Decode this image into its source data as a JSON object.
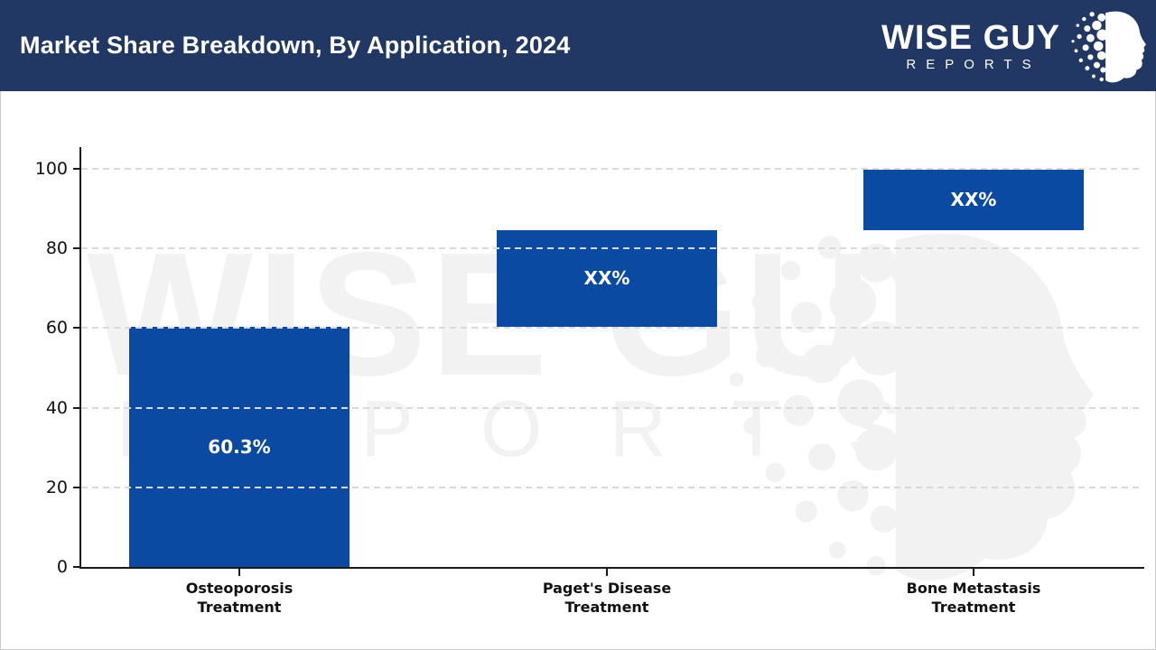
{
  "header": {
    "title": "Market Share Breakdown, By Application, 2024",
    "brand_line1": "WISE GUY",
    "brand_line2": "REPORTS"
  },
  "watermark": {
    "line1": "WISE GUY",
    "line2": "REPORTS"
  },
  "chart_data": {
    "type": "bar",
    "subtype": "floating-segment-bars (waterfall-style share breakdown, segments stack left to right)",
    "title": "Market Share Breakdown, By Application, 2024",
    "categories": [
      "Osteoporosis Treatment",
      "Paget's Disease Treatment",
      "Bone Metastasis Treatment"
    ],
    "bars": [
      {
        "category_line1": "Osteoporosis",
        "category_line2": "Treatment",
        "base": 0,
        "top": 60.3,
        "label": "60.3%"
      },
      {
        "category_line1": "Paget's Disease",
        "category_line2": "Treatment",
        "base": 60.3,
        "top": 84.6,
        "label": "XX%"
      },
      {
        "category_line1": "Bone Metastasis",
        "category_line2": "Treatment",
        "base": 84.6,
        "top": 99.8,
        "label": "XX%"
      }
    ],
    "yticks": [
      "0",
      "20",
      "40",
      "60",
      "80",
      "100"
    ],
    "ylim": [
      0,
      105
    ],
    "xlabel": "",
    "ylabel": "",
    "grid": "horizontal dashed lines at each y tick, drawn over bars",
    "legend": "none",
    "bar_color": "#0b4aa2",
    "bar_label_color": "#ffffff"
  },
  "colors": {
    "header_bg": "#213864",
    "bar_blue": "#0b4aa2",
    "gridline": "#d9d9d9",
    "axis": "#1a1a1a",
    "watermark": "#f2f2f2",
    "frame_border": "#c9c9c9",
    "text": "#111111"
  }
}
